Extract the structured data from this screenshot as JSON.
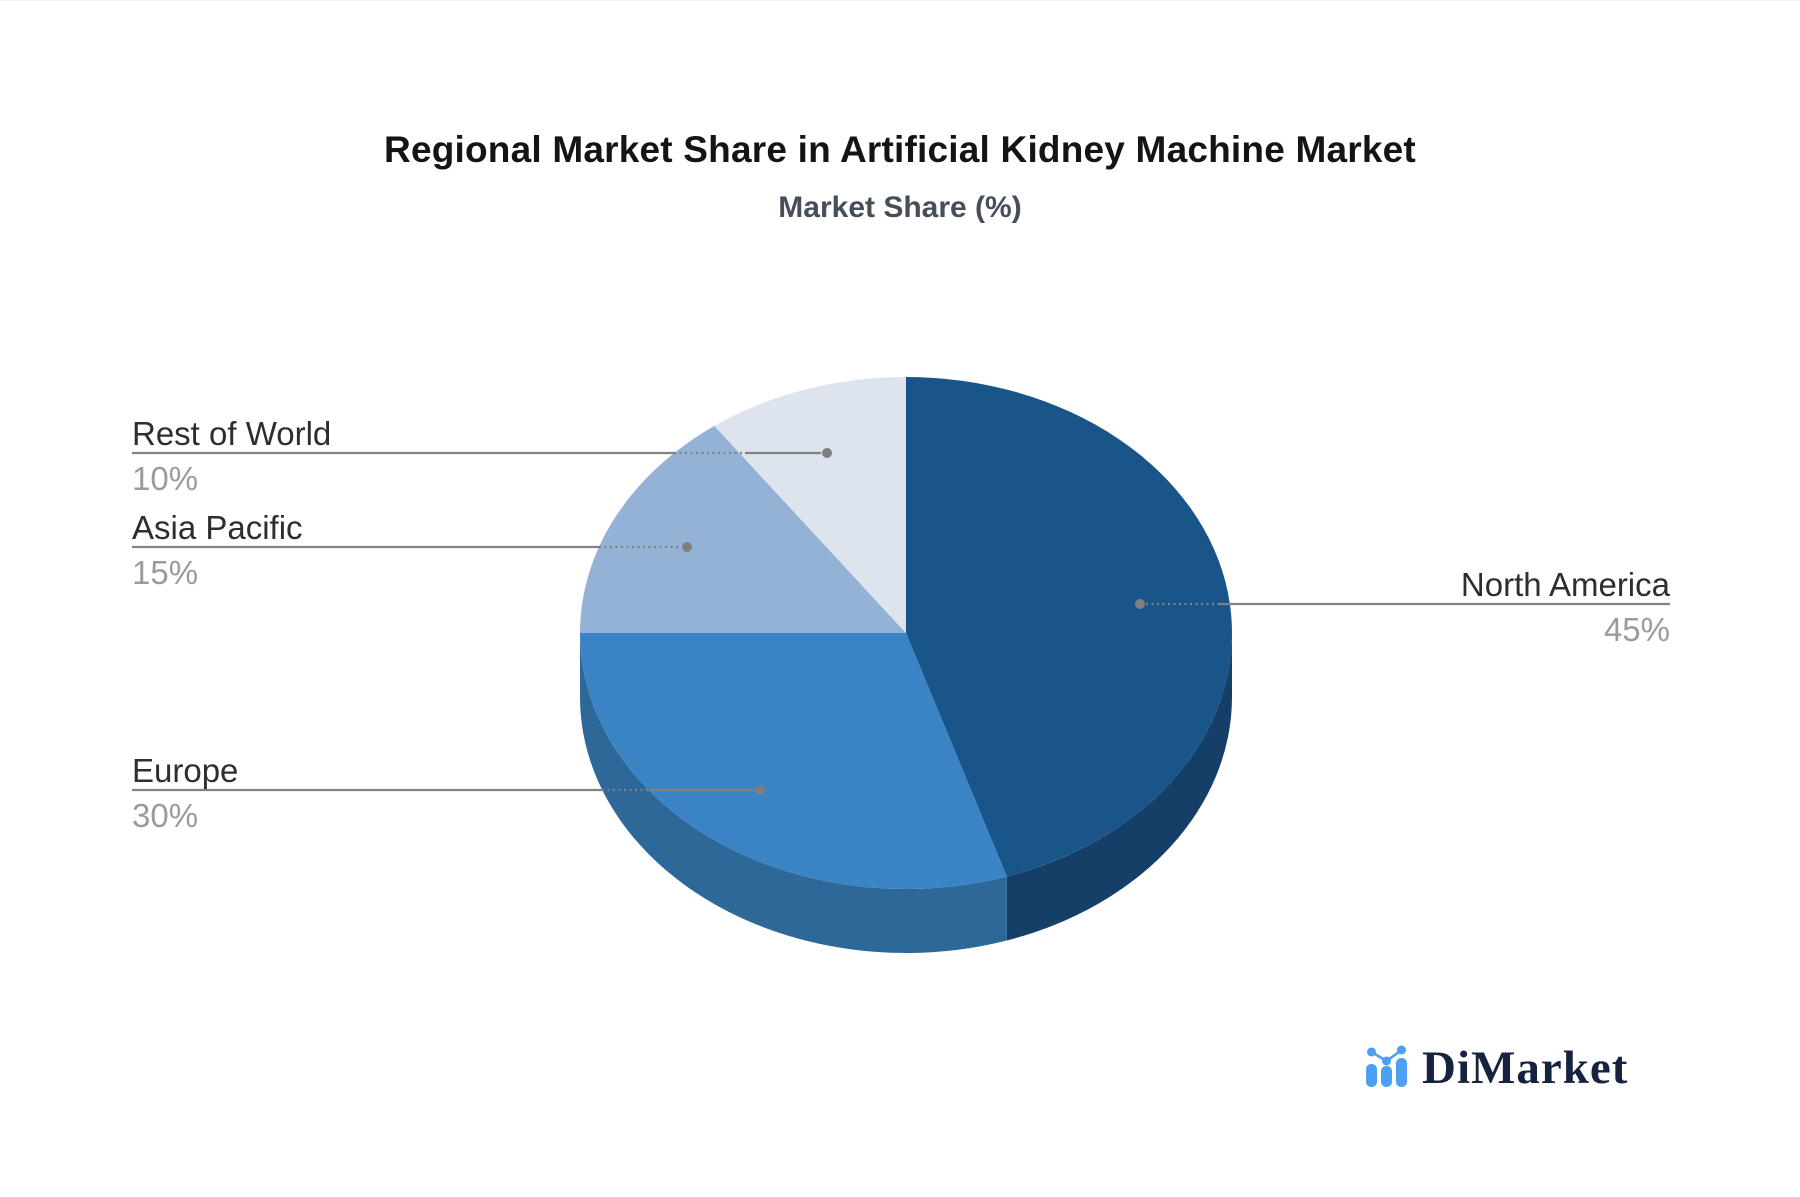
{
  "page": {
    "background": "#ffffff"
  },
  "chart_data": {
    "type": "pie",
    "effect": "3d",
    "title": "Regional Market Share in Artificial Kidney Machine Market",
    "subtitle": "Market Share (%)",
    "value_unit": "%",
    "legend_position": "none",
    "label_style": "outside-leader-lines",
    "slices": [
      {
        "label": "North America",
        "value": 45,
        "display": "45%",
        "color": "#1A5589",
        "side_color": "#153F66"
      },
      {
        "label": "Europe",
        "value": 30,
        "display": "30%",
        "color": "#3A84C6",
        "side_color": "#2D6899"
      },
      {
        "label": "Asia Pacific",
        "value": 15,
        "display": "15%",
        "color": "#94B2D6",
        "side_color": "#7E9DC2"
      },
      {
        "label": "Rest of World",
        "value": 10,
        "display": "10%",
        "color": "#DEE4ED",
        "side_color": "#C4CCD9"
      }
    ]
  },
  "branding": {
    "logo_text": "DiMarket",
    "logo_icon": "bar-line-chart-icon",
    "icon_color": "#4D9FF2",
    "text_color": "#16233E"
  },
  "colors": {
    "title_text": "#141414",
    "subtitle_text": "#454E59",
    "label_text": "#2E2E2E",
    "value_text": "#9B9B9B",
    "leader_line": "#828282",
    "anchor_dot": "#7F7F7F"
  }
}
